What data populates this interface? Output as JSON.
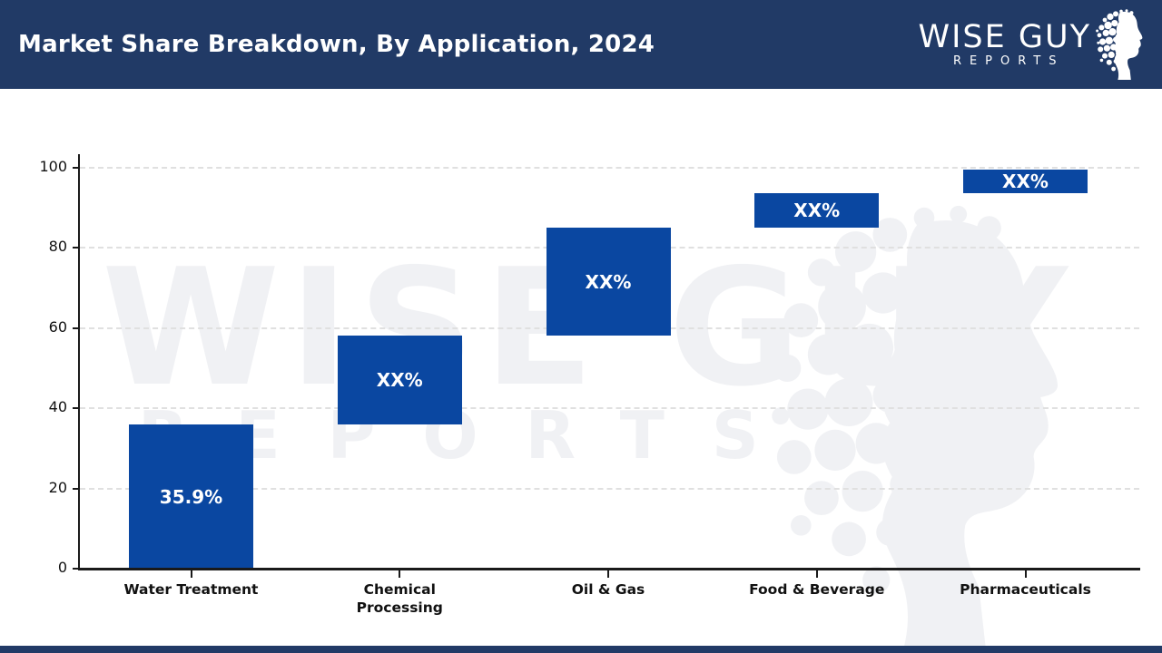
{
  "header": {
    "title": "Market Share Breakdown, By Application, 2024",
    "background": "#213a66",
    "logo": {
      "line1": "WISE GUY",
      "line2": "REPORTS"
    }
  },
  "footer": {
    "background": "#213a66"
  },
  "watermark": {
    "line1": "WISE GUY",
    "line2": "REPORTS",
    "color": "#f0f1f4"
  },
  "chart_data": {
    "type": "bar",
    "subtype": "waterfall-floating-bars",
    "title": "Market Share Breakdown, By Application, 2024",
    "categories": [
      "Water Treatment",
      "Chemical\nProcessing",
      "Oil & Gas",
      "Food & Beverage",
      "Pharmaceuticals"
    ],
    "series": [
      {
        "name": "Market Share",
        "segments": [
          {
            "category": "Water Treatment",
            "start": 0,
            "end": 35.9,
            "label": "35.9%"
          },
          {
            "category": "Chemical Processing",
            "start": 35.9,
            "end": 58.2,
            "label": "XX%"
          },
          {
            "category": "Oil & Gas",
            "start": 58.2,
            "end": 85.0,
            "label": "XX%"
          },
          {
            "category": "Food & Beverage",
            "start": 85.0,
            "end": 93.6,
            "label": "XX%"
          },
          {
            "category": "Pharmaceuticals",
            "start": 93.6,
            "end": 99.5,
            "label": "XX%"
          }
        ]
      }
    ],
    "y_ticks": [
      0,
      20,
      40,
      60,
      80,
      100
    ],
    "ylim": [
      0,
      103.5
    ],
    "grid": {
      "horizontal": true,
      "style": "dashed",
      "color": "#e0e0e0"
    },
    "legend": "none",
    "xlabel": "",
    "ylabel": "",
    "bar_color": "#0a47a1",
    "bar_label_color": "#ffffff",
    "axis_color": "#1a1a1a",
    "tick_label_color": "#111111"
  }
}
